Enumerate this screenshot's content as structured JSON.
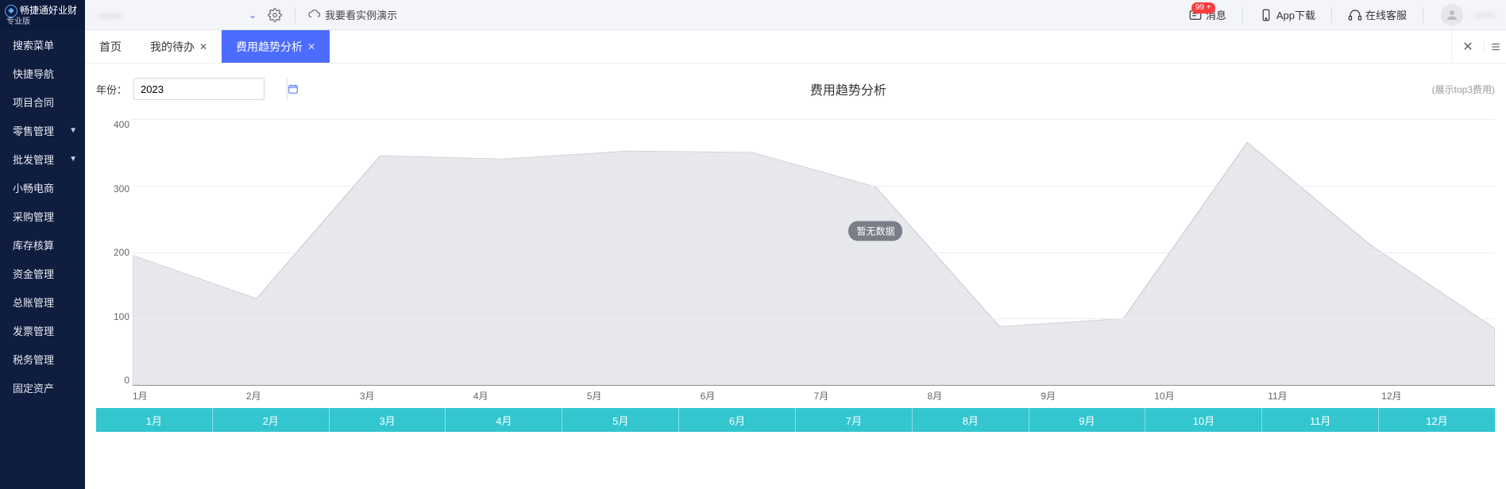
{
  "brand": {
    "name": "畅捷通好业财",
    "edition": "专业版"
  },
  "sidebar": {
    "items": [
      {
        "label": "搜索菜单",
        "expandable": false
      },
      {
        "label": "快捷导航",
        "expandable": false
      },
      {
        "label": "项目合同",
        "expandable": false
      },
      {
        "label": "零售管理",
        "expandable": true
      },
      {
        "label": "批发管理",
        "expandable": true
      },
      {
        "label": "小畅电商",
        "expandable": false
      },
      {
        "label": "采购管理",
        "expandable": false
      },
      {
        "label": "库存核算",
        "expandable": false
      },
      {
        "label": "资金管理",
        "expandable": false
      },
      {
        "label": "总账管理",
        "expandable": false
      },
      {
        "label": "发票管理",
        "expandable": false
      },
      {
        "label": "税务管理",
        "expandable": false
      },
      {
        "label": "固定资产",
        "expandable": false
      }
    ]
  },
  "topbar": {
    "org_name": "——",
    "demo_link": "我要看实例演示",
    "messages": {
      "label": "消息",
      "badge": "99 +"
    },
    "app_download": "App下载",
    "online_service": "在线客服",
    "username": "——"
  },
  "tabs": {
    "items": [
      {
        "label": "首页",
        "closable": false,
        "active": false
      },
      {
        "label": "我的待办",
        "closable": true,
        "active": false
      },
      {
        "label": "费用趋势分析",
        "closable": true,
        "active": true
      }
    ]
  },
  "filters": {
    "year_label": "年份：",
    "year_value": "2023"
  },
  "chart": {
    "title": "费用趋势分析",
    "note": "(展示top3费用)",
    "type": "area",
    "tooltip_text": "暂无数据",
    "y": {
      "min": 0,
      "max": 400,
      "step": 100,
      "ticks": [
        "400",
        "300",
        "200",
        "100",
        "0"
      ]
    },
    "x_labels": [
      "1月",
      "2月",
      "3月",
      "4月",
      "5月",
      "6月",
      "7月",
      "8月",
      "9月",
      "10月",
      "11月",
      "12月"
    ],
    "series_values": [
      195,
      130,
      345,
      340,
      352,
      350,
      298,
      88,
      100,
      365,
      210,
      85
    ],
    "fill_color": "#e7e8ec",
    "stroke_color": "#cfd1d8",
    "grid_color": "#eceef3",
    "background": "#ffffff",
    "tooltip_bg": "#7a7e87",
    "tooltip_pos_month_index": 6
  },
  "month_strip": {
    "labels": [
      "1月",
      "2月",
      "3月",
      "4月",
      "5月",
      "6月",
      "7月",
      "8月",
      "9月",
      "10月",
      "11月",
      "12月"
    ],
    "color": "#33c6cf"
  }
}
